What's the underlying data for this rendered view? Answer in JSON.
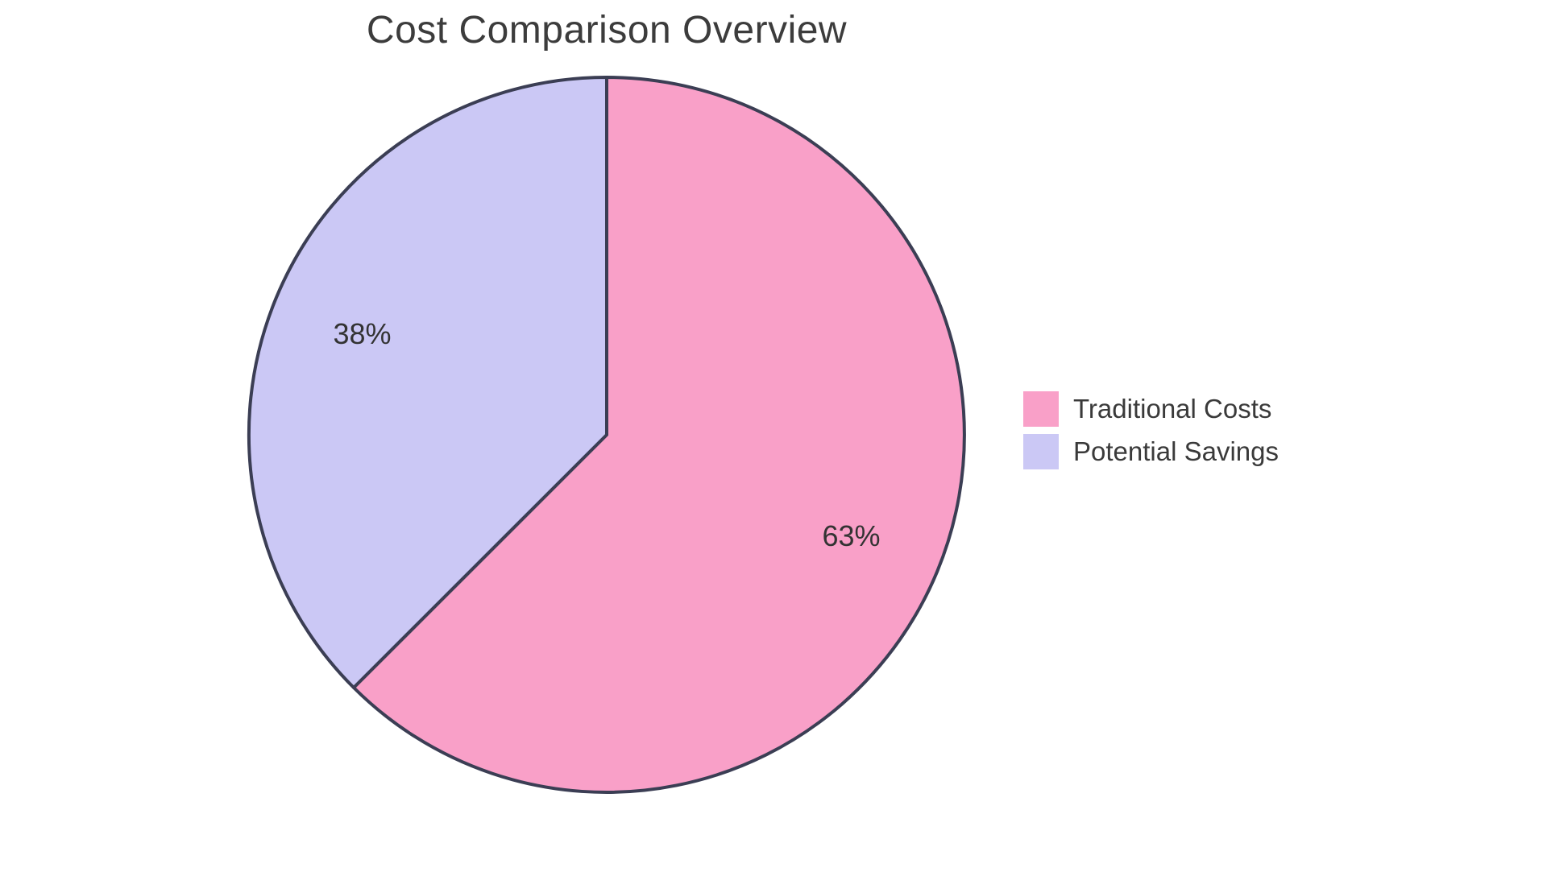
{
  "title": {
    "text": "Cost Comparison Overview",
    "color": "#3c3c3c"
  },
  "chart_data": {
    "type": "pie",
    "title": "Cost Comparison Overview",
    "start_angle_deg": 0,
    "direction": "clockwise",
    "slices": [
      {
        "label": "Traditional Costs",
        "value": 62.5,
        "display_label": "63%",
        "color": "#F9A0C8"
      },
      {
        "label": "Potential Savings",
        "value": 37.5,
        "display_label": "38%",
        "color": "#CBC8F5"
      }
    ],
    "outline_color": "#3B3E54",
    "outline_width": 4,
    "slice_label_color": "#333333",
    "legend_position": "right",
    "legend_entries": [
      "Traditional Costs",
      "Potential Savings"
    ]
  },
  "legend": {
    "items": [
      {
        "label": "Traditional Costs",
        "swatch_color": "#F9A0C8"
      },
      {
        "label": "Potential Savings",
        "swatch_color": "#CBC8F5"
      }
    ],
    "text_color": "#3a3a3a"
  }
}
